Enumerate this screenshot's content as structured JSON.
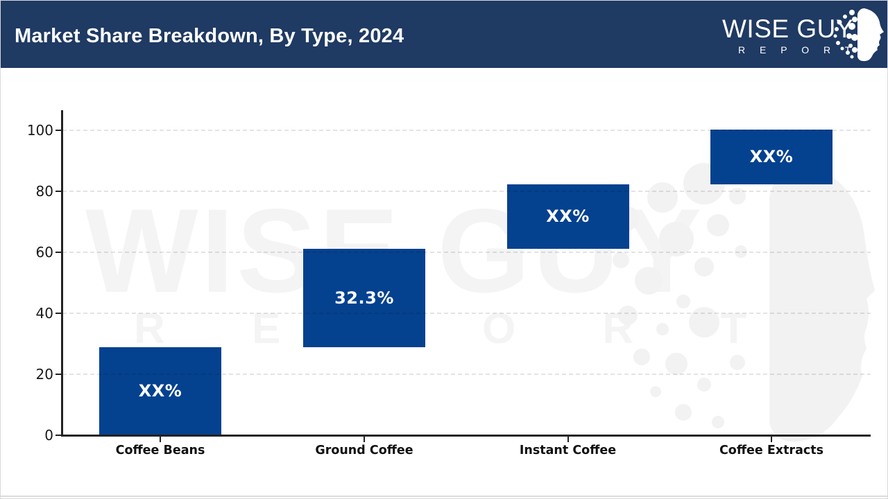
{
  "header": {
    "title": "Market Share Breakdown, By Type, 2024",
    "bg_color": "#1f3a63",
    "logo": {
      "line1": "WISE GUY",
      "line2": "REPORTS"
    }
  },
  "watermark": {
    "line1": "WISE GUY",
    "line2": "REPORTS"
  },
  "chart_data": {
    "type": "bar",
    "subtype": "waterfall",
    "title": "Market Share Breakdown, By Type, 2024",
    "categories": [
      "Coffee Beans",
      "Ground Coffee",
      "Instant Coffee",
      "Coffee Extracts"
    ],
    "segments": [
      {
        "category": "Coffee Beans",
        "start": 0,
        "value": 28.9,
        "label": "XX%"
      },
      {
        "category": "Ground Coffee",
        "start": 28.9,
        "value": 32.3,
        "label": "32.3%"
      },
      {
        "category": "Instant Coffee",
        "start": 61.2,
        "value": 21.1,
        "label": "XX%"
      },
      {
        "category": "Coffee Extracts",
        "start": 82.3,
        "value": 18.0,
        "label": "XX%"
      }
    ],
    "yticks": [
      0,
      20,
      40,
      60,
      80,
      100
    ],
    "ylim": [
      0,
      106
    ],
    "grid": "dashed-horizontal",
    "legend": "none",
    "bar_color": "#04418f",
    "bar_label_color": "#ffffff",
    "axis_color": "#222222"
  }
}
